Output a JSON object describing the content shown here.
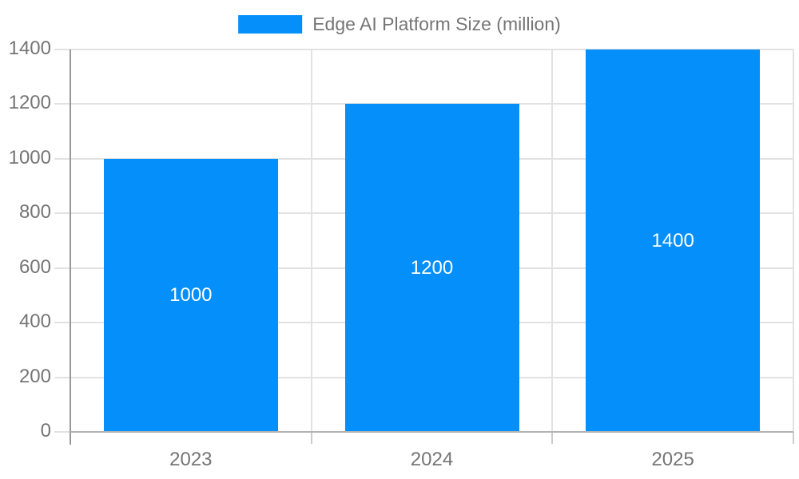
{
  "legend": {
    "label": "Edge AI Platform Size (million)"
  },
  "chart_data": {
    "type": "bar",
    "title": "",
    "legend_entries": [
      "Edge AI Platform Size (million)"
    ],
    "legend_position": "top",
    "categories": [
      "2023",
      "2024",
      "2025"
    ],
    "series": [
      {
        "name": "Edge AI Platform Size (million)",
        "values": [
          1000,
          1200,
          1400
        ]
      }
    ],
    "data_labels": [
      "1000",
      "1200",
      "1400"
    ],
    "xlabel": "",
    "ylabel": "",
    "ylim": [
      0,
      1400
    ],
    "yticks": [
      0,
      200,
      400,
      600,
      800,
      1000,
      1200,
      1400
    ],
    "grid": true,
    "colors": {
      "bar": "#048FFB",
      "bar_value_text": "#ffffff",
      "axis_text": "#757575",
      "legend_text": "#757575",
      "gridline": "#e2e2e2",
      "y_axis_line": "#979797",
      "x_axis_line": "#b3b3b3",
      "boundary_tick": "#cccccc",
      "background": "#ffffff"
    }
  }
}
